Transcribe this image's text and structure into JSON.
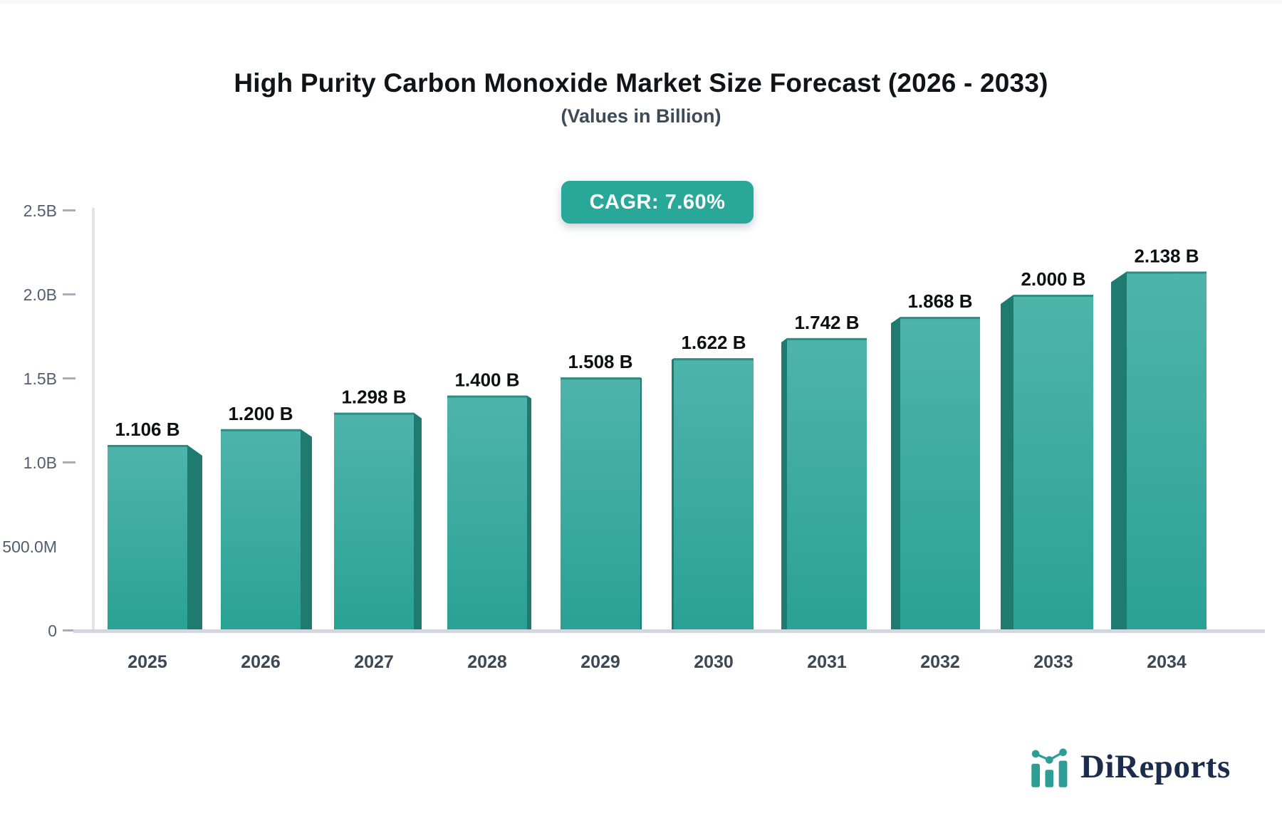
{
  "page": {
    "bg": "#ffffff",
    "top_strip_color": "#f7f8fb"
  },
  "header": {
    "title": "High Purity Carbon Monoxide Market Size Forecast (2026 - 2033)",
    "subtitle": "(Values in Billion)"
  },
  "badge": {
    "label": "CAGR: 7.60%",
    "bg": "#29a89a",
    "text_color": "#ffffff"
  },
  "chart_data": {
    "type": "bar",
    "title": "High Purity Carbon Monoxide Market Size Forecast (2026 - 2033)",
    "subtitle": "(Values in Billion)",
    "categories": [
      "2025",
      "2026",
      "2027",
      "2028",
      "2029",
      "2030",
      "2031",
      "2032",
      "2033",
      "2034"
    ],
    "values": [
      1.106,
      1.2,
      1.298,
      1.4,
      1.508,
      1.622,
      1.742,
      1.868,
      2.0,
      2.138
    ],
    "value_labels": [
      "1.106 B",
      "1.200 B",
      "1.298 B",
      "1.400 B",
      "1.508 B",
      "1.622 B",
      "1.742 B",
      "1.868 B",
      "2.000 B",
      "2.138 B"
    ],
    "unit": "B",
    "xlabel": "",
    "ylabel": "",
    "ylim": [
      0,
      2.5
    ],
    "yticks": [
      {
        "label": "2.5B",
        "value": 2.5,
        "dash": true
      },
      {
        "label": "2.0B",
        "value": 2.0,
        "dash": true
      },
      {
        "label": "1.5B",
        "value": 1.5,
        "dash": true
      },
      {
        "label": "1.0B",
        "value": 1.0,
        "dash": true
      },
      {
        "label": "500.0M",
        "value": 0.5,
        "dash": false
      },
      {
        "label": "0",
        "value": 0,
        "dash": true
      }
    ],
    "grid": false,
    "legend": false,
    "style_3d": true,
    "colors": {
      "bar_face_top": "#4fb4ab",
      "bar_face_bottom": "#2aa195",
      "bar_side": "#1f7a6f",
      "bar_top_edge": "#2b9084",
      "axis_line": "#d3d7dd",
      "y_axis_line": "#e1e4e9",
      "tick_dash": "#a7aeb8",
      "value_label": "#0d0f12",
      "category_label": "#3d4856",
      "ytick_label": "#525e6e"
    }
  },
  "logo": {
    "text": "DiReports",
    "text_color": "#1d2c4c",
    "icon_color": "#2d9e95",
    "icon_name": "mini-bar-chart-icon"
  }
}
